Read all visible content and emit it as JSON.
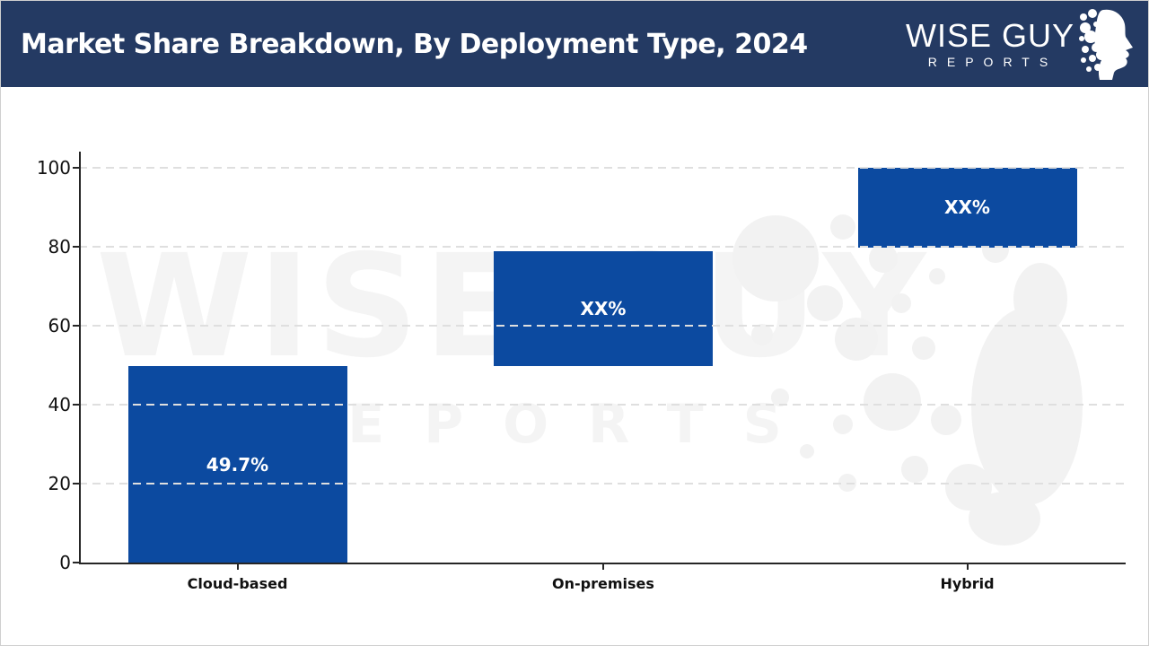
{
  "header": {
    "title": "Market Share Breakdown, By Deployment Type, 2024",
    "logo": {
      "wordmark": "WISE GUY",
      "tagline": "REPORTS"
    }
  },
  "watermark": {
    "wordmark": "WISE GUY",
    "tagline": "REPORTS"
  },
  "chart_data": {
    "type": "bar",
    "subtype": "floating-segment-waterfall",
    "title": "Market Share Breakdown, By Deployment Type, 2024",
    "categories": [
      "Cloud-based",
      "On-premises",
      "Hybrid"
    ],
    "segments": [
      {
        "category": "Cloud-based",
        "start": 0,
        "end": 49.7,
        "value_label": "49.7%"
      },
      {
        "category": "On-premises",
        "start": 49.7,
        "end": 78.9,
        "value_label": "XX%"
      },
      {
        "category": "Hybrid",
        "start": 79.8,
        "end": 100,
        "value_label": "XX%"
      }
    ],
    "xlabel": "",
    "ylabel": "",
    "ylim": [
      0,
      105
    ],
    "yticks": [
      0,
      20,
      40,
      60,
      80,
      100
    ],
    "grid": {
      "axis": "y",
      "style": "dashed",
      "drawn_over_bars": true
    },
    "legend": null,
    "colors": {
      "bar": "#0c4aa0",
      "bar_label": "#ffffff",
      "grid": "#dfdfdf",
      "axis": "#262626",
      "tick_label": "#111111",
      "category_label": "#111111"
    }
  },
  "colors": {
    "header_bg": "#243a63",
    "header_text": "#ffffff",
    "canvas_bg": "#ffffff",
    "watermark": "#f4f4f4",
    "border": "#cfcfcf"
  }
}
